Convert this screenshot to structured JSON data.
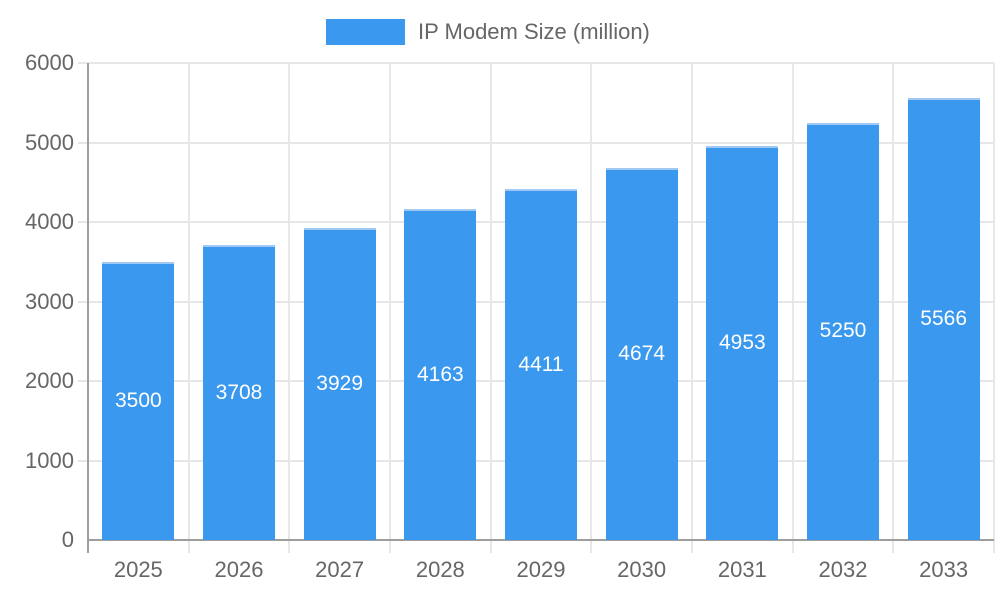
{
  "chart_data": {
    "type": "bar",
    "title": "",
    "legend_label": "IP Modem Size (million)",
    "legend_position": "top",
    "categories": [
      "2025",
      "2026",
      "2027",
      "2028",
      "2029",
      "2030",
      "2031",
      "2032",
      "2033"
    ],
    "values": [
      3500,
      3708,
      3929,
      4163,
      4411,
      4674,
      4953,
      5250,
      5566
    ],
    "series": [
      {
        "name": "IP Modem Size (million)",
        "values": [
          3500,
          3708,
          3929,
          4163,
          4411,
          4674,
          4953,
          5250,
          5566
        ]
      }
    ],
    "xlabel": "",
    "ylabel": "",
    "ylim": [
      0,
      6000
    ],
    "yticks": [
      0,
      1000,
      2000,
      3000,
      4000,
      5000,
      6000
    ],
    "grid": true,
    "value_labels_shown": true,
    "colors": {
      "bar": "#3a99ee",
      "bar_top_edge": "#9fc9f3",
      "grid": "#e7e7e7",
      "axis": "#9e9e9e",
      "tick_label": "#666666",
      "value_label": "#ffffff",
      "background": "#ffffff"
    }
  }
}
